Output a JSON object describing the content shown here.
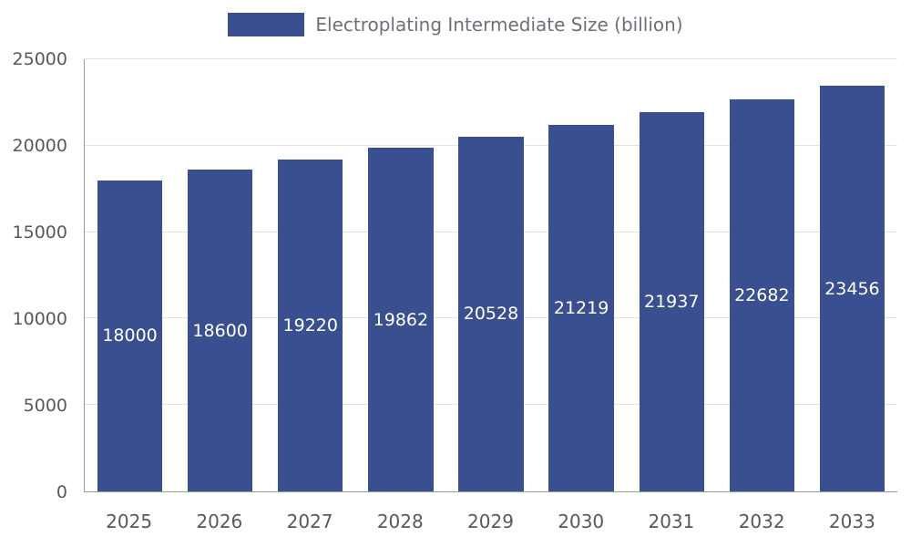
{
  "chart_data": {
    "type": "bar",
    "title": "Electroplating Intermediate Size (billion)",
    "categories": [
      "2025",
      "2026",
      "2027",
      "2028",
      "2029",
      "2030",
      "2031",
      "2032",
      "2033"
    ],
    "values": [
      18000,
      18600,
      19220,
      19862,
      20528,
      21219,
      21937,
      22682,
      23456
    ],
    "xlabel": "",
    "ylabel": "",
    "ylim": [
      0,
      25000
    ],
    "yticks": [
      0,
      5000,
      10000,
      15000,
      20000,
      25000
    ],
    "grid": true,
    "legend_position": "top",
    "bar_color": "#3A4F8F",
    "bar_label_color": "#ffffff",
    "axis_text_color": "#595959",
    "legend_text_color": "#6e7079",
    "gridline_color": "#e2e2e2"
  }
}
